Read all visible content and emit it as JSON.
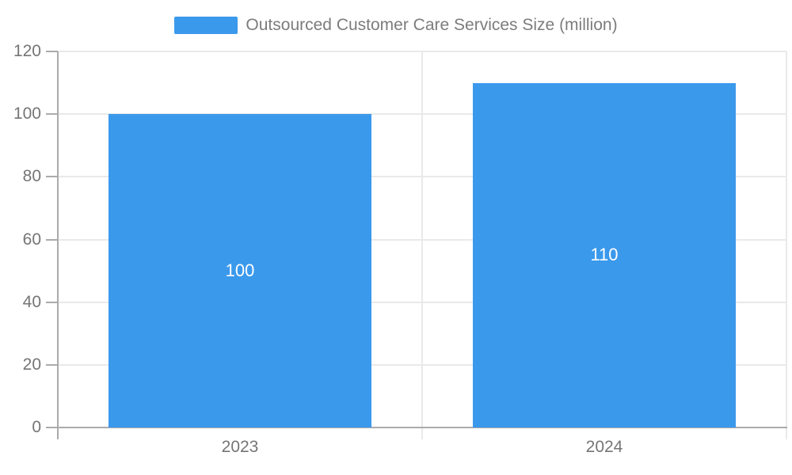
{
  "chart_data": {
    "type": "bar",
    "title": "",
    "legend": "Outsourced Customer Care Services Size (million)",
    "legend_position": "top",
    "categories": [
      "2023",
      "2024"
    ],
    "series": [
      {
        "name": "Outsourced Customer Care Services Size (million)",
        "values": [
          100,
          110
        ]
      }
    ],
    "data_labels": [
      "100",
      "110"
    ],
    "xlabel": "",
    "ylabel": "",
    "ylim": [
      0,
      120
    ],
    "yticks": [
      0,
      20,
      40,
      60,
      80,
      100,
      120
    ],
    "ytick_labels": [
      "0",
      "20",
      "40",
      "60",
      "80",
      "100",
      "120"
    ],
    "grid": true
  },
  "colors": {
    "bar_fill": "#3b99ec",
    "bar_value_label": "#ffffff",
    "grid_line": "#e9e9e9",
    "axis_line": "#ababab",
    "tick_label": "#757575",
    "legend_text": "#7c7c7c",
    "background": "#ffffff"
  }
}
